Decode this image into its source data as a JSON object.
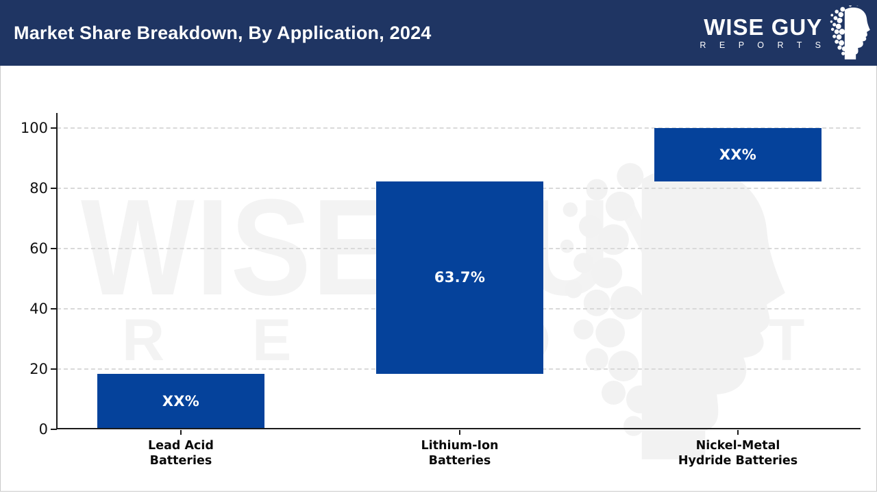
{
  "header": {
    "title": "Market Share Breakdown, By Application, 2024",
    "logo": {
      "name": "WISE GUY",
      "tagline": "R E P O R T S",
      "icon": "dotted-head-profile"
    }
  },
  "watermark": {
    "brand": "WISE GUY",
    "tagline": "R E P O R T S",
    "icon": "dotted-head-profile"
  },
  "colors": {
    "header_bg": "#1f3563",
    "bar": "#05429b",
    "grid": "#d9d9d9",
    "axis": "#1a1a1a",
    "bar_label_text": "#ffffff",
    "watermark": "#f3f3f3"
  },
  "chart_data": {
    "type": "bar",
    "variant": "floating-segment-waterfall",
    "title": "Market Share Breakdown, By Application, 2024",
    "xlabel": "",
    "ylabel": "",
    "ylim": [
      0,
      100
    ],
    "yticks": [
      0,
      20,
      40,
      60,
      80,
      100
    ],
    "grid": "horizontal-dashed",
    "legend": "none",
    "bar_color": "#05429b",
    "categories": [
      [
        "Lead Acid",
        "Batteries"
      ],
      [
        "Lithium-Ion",
        "Batteries"
      ],
      [
        "Nickel-Metal",
        "Hydride Batteries"
      ]
    ],
    "segments": [
      {
        "category": "Lead Acid Batteries",
        "start": 0,
        "end": 18.5,
        "label": "XX%"
      },
      {
        "category": "Lithium-Ion Batteries",
        "start": 18.5,
        "end": 82.2,
        "label": "63.7%",
        "value": 63.7
      },
      {
        "category": "Nickel-Metal Hydride Batteries",
        "start": 82.2,
        "end": 99.9,
        "label": "XX%"
      }
    ]
  }
}
